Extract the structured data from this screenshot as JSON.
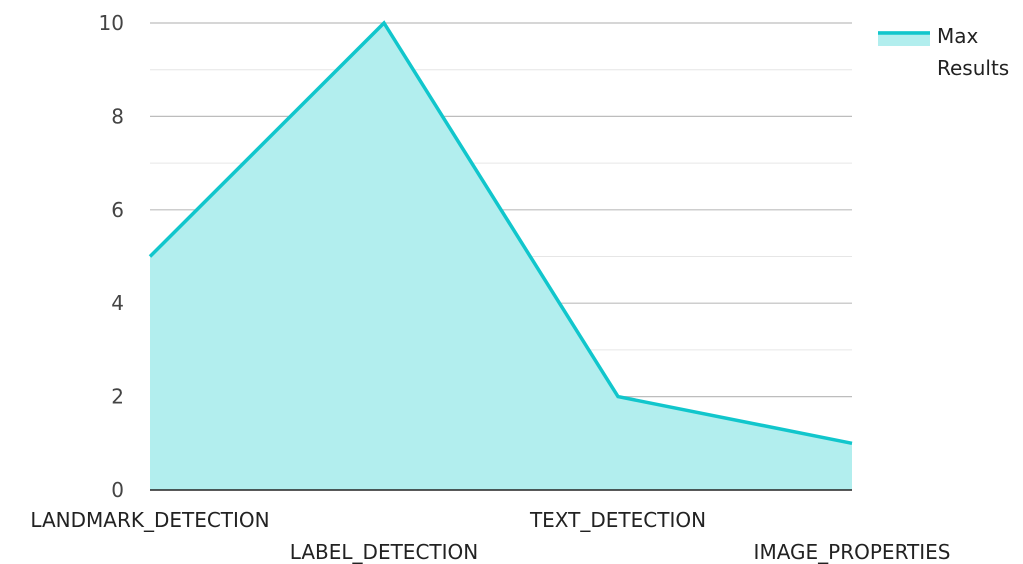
{
  "chart_data": {
    "type": "area",
    "title": "",
    "xlabel": "",
    "ylabel": "",
    "categories": [
      "LANDMARK_DETECTION",
      "LABEL_DETECTION",
      "TEXT_DETECTION",
      "IMAGE_PROPERTIES"
    ],
    "series": [
      {
        "name": "Max Results",
        "values": [
          5,
          10,
          2,
          1
        ]
      }
    ],
    "ylim": [
      0,
      10
    ],
    "yticks": [
      "0",
      "2",
      "4",
      "6",
      "8",
      "10"
    ],
    "grid": true,
    "legend_position": "top-right",
    "colors": {
      "line": "#11c6cc",
      "fill": "#b2eeee",
      "grid_major": "#bdbdbd",
      "grid_minor": "#e6e6e6",
      "axis": "#222222"
    }
  },
  "legend": {
    "line1": "Max",
    "line2": "Results"
  }
}
